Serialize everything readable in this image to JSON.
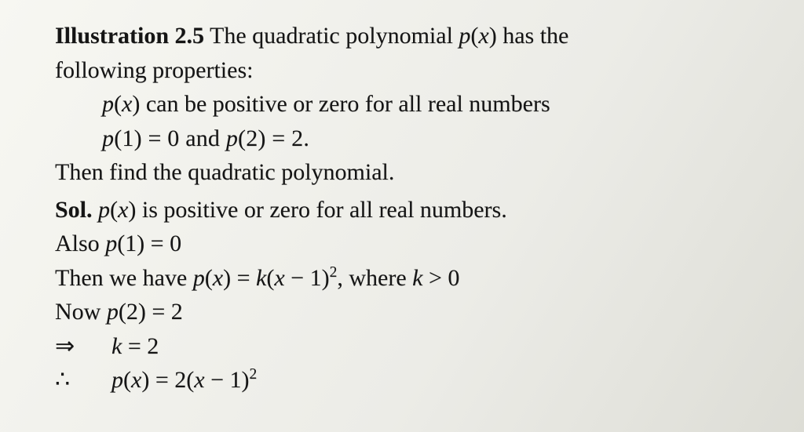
{
  "colors": {
    "text": "#151515",
    "bg_light": "#f7f7f2",
    "bg_dark": "#ddddd6"
  },
  "typography": {
    "body_fontsize_pt": 22,
    "line_height": 1.45,
    "font_family": "Georgia, Times New Roman, serif"
  },
  "illustration": {
    "label": "Illustration 2.5",
    "lead_a": "The quadratic polynomial ",
    "px": "p",
    "open": "(",
    "x": "x",
    "close": ")",
    "lead_b": " has the",
    "line2": "following properties:"
  },
  "properties": {
    "line1_a": " can be positive or zero for all real numbers",
    "line2": "p(1) = 0 and p(2) = 2."
  },
  "then_find": "Then find the quadratic polynomial.",
  "sol": {
    "label": "Sol.",
    "s1_a": " is positive or zero for all real numbers.",
    "also": "Also  ",
    "p1_eq": "p(1) = 0",
    "then_a": "Then we have ",
    "pxk_a": "p(x) = k(x − 1)",
    "sq": "2",
    "then_b": ", where ",
    "kgt": "k > 0",
    "now": "Now ",
    "p2_eq": "p(2) = 2",
    "imp": "⇒",
    "k2": "k = 2",
    "there": "∴",
    "final": "p(x) = 2(x − 1)",
    "final_sq": "2"
  }
}
